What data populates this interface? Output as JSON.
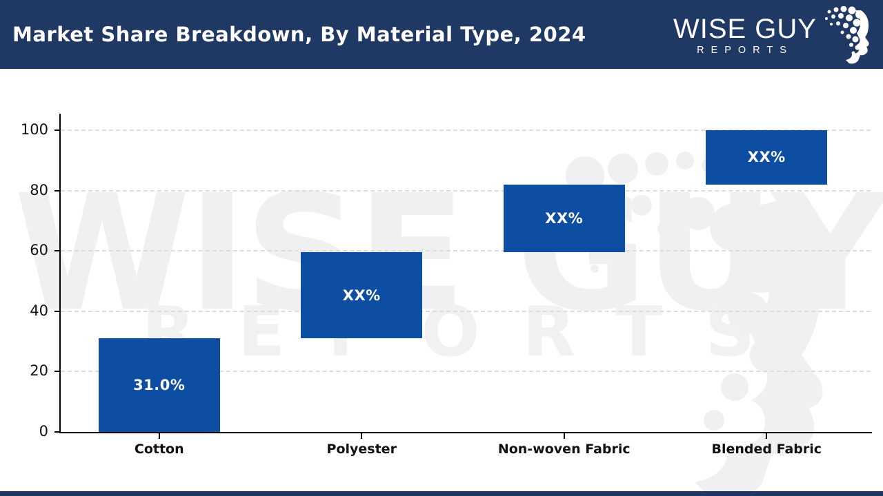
{
  "header": {
    "title": "Market Share Breakdown, By Material Type, 2024",
    "logo": {
      "line1": "WISE GUY",
      "line2": "REPORTS"
    }
  },
  "watermark": {
    "line1": "WISE GUY",
    "line2": "REPORTS"
  },
  "colors": {
    "header_bg": "#203864",
    "footer_bg": "#203864",
    "bar_blue": "#0D4DA2",
    "gridline": "#DCDCDC",
    "watermark_gray": "#F0F0F2",
    "title_text": "#FFFFFF",
    "axis_text": "#111111"
  },
  "chart_data": {
    "type": "bar",
    "subtype": "waterfall-segments",
    "title": "Market Share Breakdown, By Material Type, 2024",
    "categories": [
      "Cotton",
      "Polyester",
      "Non-woven Fabric",
      "Blended Fabric"
    ],
    "segments": [
      {
        "category": "Cotton",
        "start": 0,
        "end": 31,
        "value": 31.0,
        "label": "31.0%"
      },
      {
        "category": "Polyester",
        "start": 31,
        "end": 59.5,
        "value": 28.5,
        "label": "XX%"
      },
      {
        "category": "Non-woven Fabric",
        "start": 59.5,
        "end": 82,
        "value": 22.5,
        "label": "XX%"
      },
      {
        "category": "Blended Fabric",
        "start": 82,
        "end": 100,
        "value": 18.0,
        "label": "XX%"
      }
    ],
    "xlabel": "",
    "ylabel": "",
    "ylim": [
      0,
      100
    ],
    "yticks": [
      0,
      20,
      40,
      60,
      80,
      100
    ],
    "grid": "horizontal-dashed",
    "legend": "none"
  }
}
